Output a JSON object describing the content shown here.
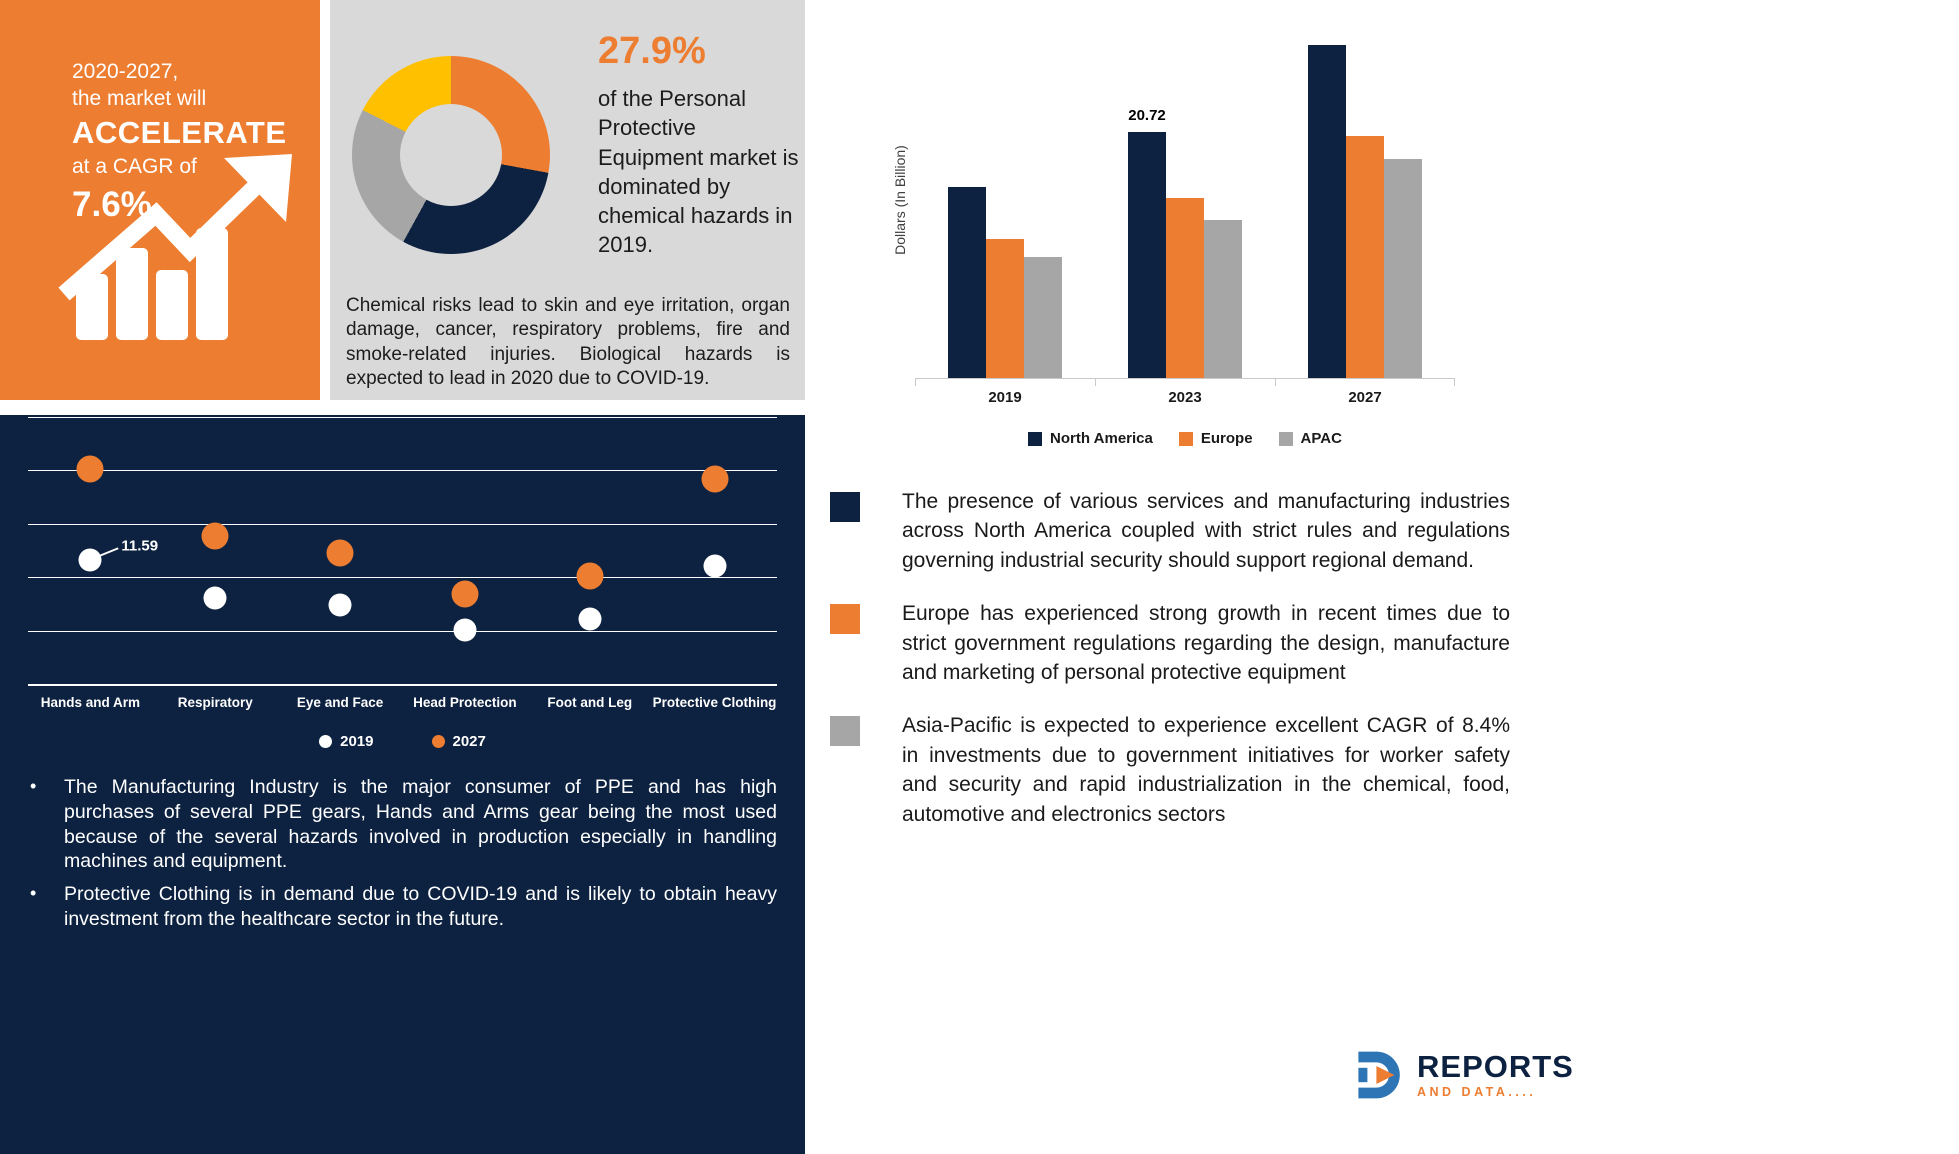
{
  "colors": {
    "orange": "#ED7D31",
    "navy": "#0D2240",
    "gray": "#A6A6A6",
    "yellow": "#FFC000",
    "card_gray": "#D9D9D9"
  },
  "accelerate_card": {
    "period": "2020-2027,",
    "line2": "the market will",
    "highlight": "ACCELERATE",
    "line4": "at a CAGR of",
    "cagr": "7.6%"
  },
  "donut_card": {
    "stat": "27.9%",
    "stat_text": "of the Personal Protective Equipment market is dominated by chemical hazards in 2019.",
    "body": "Chemical risks lead to skin and eye irritation, organ damage, cancer, respiratory problems, fire and smoke-related injuries. Biological hazards is expected to lead in 2020 due to COVID-19."
  },
  "dot_panel": {
    "bullets": [
      "The Manufacturing Industry is the major consumer of PPE and has high purchases of several PPE gears, Hands and Arms gear being the most used because of the several hazards involved in production especially in handling machines and equipment.",
      "Protective Clothing is in demand due to COVID-19 and is likely to obtain heavy investment from the healthcare sector in the future."
    ]
  },
  "right_panel": {
    "bullets": [
      {
        "color": "#0D2240",
        "text": "The presence of various services and manufacturing industries across North America coupled with strict rules and regulations governing industrial security should support regional demand."
      },
      {
        "color": "#ED7D31",
        "text": "Europe has experienced strong growth in recent times due to strict government regulations regarding the design, manufacture and marketing of personal protective equipment"
      },
      {
        "color": "#A6A6A6",
        "text": "Asia-Pacific is expected to experience excellent CAGR of 8.4% in investments due to government initiatives for worker safety and security and rapid industrialization in the chemical, food, automotive and electronics sectors"
      }
    ]
  },
  "logo": {
    "text": "REPORTS",
    "subtext": "AND DATA...."
  },
  "icons": {
    "growth": "growth-arrow-icon",
    "logo": "reports-and-data-logo-icon"
  },
  "chart_data": [
    {
      "type": "pie",
      "subtype": "donut",
      "title": "",
      "annotation": "27.9% of the Personal Protective Equipment market is dominated by chemical hazards in 2019.",
      "slices": [
        {
          "label": "chemical hazards",
          "value": 27.9,
          "color": "#ED7D31"
        },
        {
          "label": "segment-navy",
          "value": 30.1,
          "color": "#0D2240"
        },
        {
          "label": "segment-gray",
          "value": 24.5,
          "color": "#A6A6A6"
        },
        {
          "label": "segment-yellow",
          "value": 17.5,
          "color": "#FFC000"
        }
      ],
      "legend_position": "none"
    },
    {
      "type": "bar",
      "title": "",
      "xlabel": "",
      "ylabel": "Dollars (In Billion)",
      "categories": [
        "2019",
        "2023",
        "2027"
      ],
      "series": [
        {
          "name": "North America",
          "color": "#0D2240",
          "values": [
            16.1,
            20.72,
            28.1
          ]
        },
        {
          "name": "Europe",
          "color": "#ED7D31",
          "values": [
            11.7,
            15.2,
            20.4
          ]
        },
        {
          "name": "APAC",
          "color": "#A6A6A6",
          "values": [
            10.2,
            13.3,
            18.5
          ]
        }
      ],
      "data_labels": [
        {
          "series": "North America",
          "category": "2023",
          "text": "20.72"
        }
      ],
      "ylim": [
        0,
        30
      ],
      "grid": false,
      "legend_position": "bottom"
    },
    {
      "type": "scatter",
      "title": "",
      "categories": [
        "Hands and Arm",
        "Respiratory",
        "Eye and Face",
        "Head Protection",
        "Foot and Leg",
        "Protective Clothing"
      ],
      "series": [
        {
          "name": "2019",
          "color": "#FFFFFF",
          "values": [
            11.59,
            8.1,
            7.4,
            5.1,
            6.1,
            11.1
          ]
        },
        {
          "name": "2027",
          "color": "#ED7D31",
          "values": [
            20.1,
            13.9,
            12.3,
            8.4,
            10.1,
            19.2
          ]
        }
      ],
      "data_labels": [
        {
          "series": "2019",
          "category": "Hands and Arm",
          "text": "11.59"
        }
      ],
      "ylim": [
        0,
        25
      ],
      "grid": true,
      "gridline_values": [
        5,
        10,
        15,
        20,
        25
      ],
      "legend_position": "bottom"
    }
  ]
}
